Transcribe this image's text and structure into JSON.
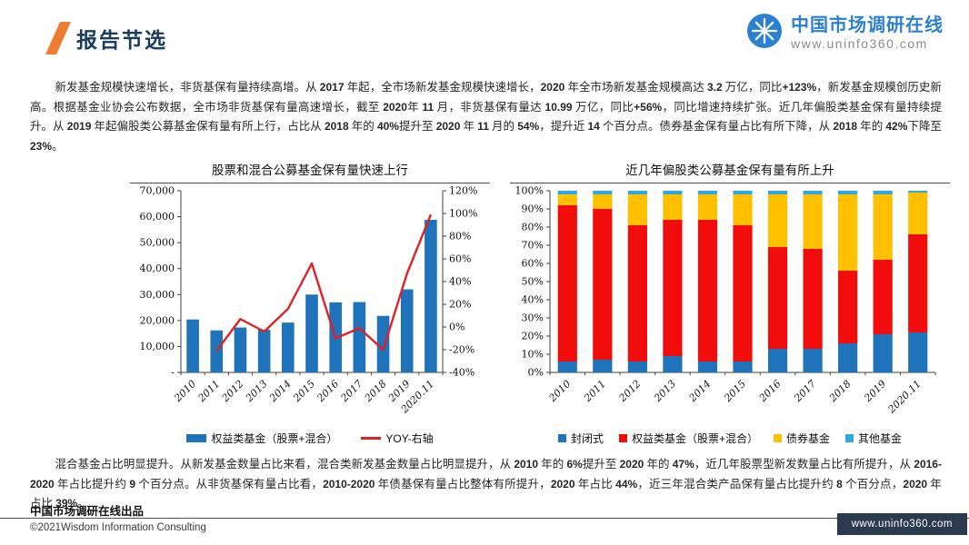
{
  "header": {
    "title": "报告节选"
  },
  "logo": {
    "name": "中国市场调研在线",
    "url": "www.uninfo360.com"
  },
  "paragraphs": {
    "top": [
      {
        "t": "新发基金规模快速增长，非货基保有量持续高增。从 "
      },
      {
        "t": "2017",
        "b": true
      },
      {
        "t": " 年起，全市场新发基金规模快速增长，"
      },
      {
        "t": "2020",
        "b": true
      },
      {
        "t": " 年全市场新发基金规模高达 "
      },
      {
        "t": "3.2",
        "b": true
      },
      {
        "t": " 万亿，同比"
      },
      {
        "t": "+123%",
        "b": true
      },
      {
        "t": "，新发基金规模创历史新高。根据基金业协会公布数据，全市场非货基保有量高速增长，截至 "
      },
      {
        "t": "2020",
        "b": true
      },
      {
        "t": "年 "
      },
      {
        "t": "11",
        "b": true
      },
      {
        "t": " 月，非货基保有量达 "
      },
      {
        "t": "10.99",
        "b": true
      },
      {
        "t": " 万亿，同比"
      },
      {
        "t": "+56%",
        "b": true
      },
      {
        "t": "，同比增速持续扩张。近几年偏股类基金保有量持续提升。从 "
      },
      {
        "t": "2019",
        "b": true
      },
      {
        "t": " 年起偏股类公募基金保有量有所上行，占比从 "
      },
      {
        "t": "2018",
        "b": true
      },
      {
        "t": " 年的 "
      },
      {
        "t": "40%",
        "b": true
      },
      {
        "t": "提升至 "
      },
      {
        "t": "2020",
        "b": true
      },
      {
        "t": " 年 "
      },
      {
        "t": "11",
        "b": true
      },
      {
        "t": " 月的 "
      },
      {
        "t": "54%",
        "b": true
      },
      {
        "t": "，提升近 "
      },
      {
        "t": "14",
        "b": true
      },
      {
        "t": " 个百分点。债券基金保有量占比有所下降，从 "
      },
      {
        "t": "2018",
        "b": true
      },
      {
        "t": " 年的 "
      },
      {
        "t": "42%",
        "b": true
      },
      {
        "t": "下降至 "
      },
      {
        "t": "23%",
        "b": true
      },
      {
        "t": "。"
      }
    ],
    "bottom": [
      {
        "t": "混合基金占比明显提升。从新发基金数量占比来看，混合类新发基金数量占比明显提升，从 "
      },
      {
        "t": "2010",
        "b": true
      },
      {
        "t": " 年的 "
      },
      {
        "t": "6%",
        "b": true
      },
      {
        "t": "提升至 "
      },
      {
        "t": "2020",
        "b": true
      },
      {
        "t": " 年的 "
      },
      {
        "t": "47%",
        "b": true
      },
      {
        "t": "，近几年股票型新发数量占比有所提升，从 "
      },
      {
        "t": "2016-2020",
        "b": true
      },
      {
        "t": " 年占比提升约 "
      },
      {
        "t": "9",
        "b": true
      },
      {
        "t": " 个百分点。从非货基保有量占比看，"
      },
      {
        "t": "2010-2020",
        "b": true
      },
      {
        "t": " 年债基保有量占比整体有所提升，"
      },
      {
        "t": "2020",
        "b": true
      },
      {
        "t": " 年占比 "
      },
      {
        "t": "44%",
        "b": true
      },
      {
        "t": "，近三年混合类产品保有量占比提升约 "
      },
      {
        "t": "8",
        "b": true
      },
      {
        "t": " 个百分点，"
      },
      {
        "t": "2020",
        "b": true
      },
      {
        "t": " 年占比 "
      },
      {
        "t": "39%",
        "b": true
      },
      {
        "t": "。"
      }
    ]
  },
  "chart_data": [
    {
      "type": "bar",
      "variant": "bar+line dual axis",
      "title": "股票和混合公募基金保有量快速上行",
      "categories": [
        "2010",
        "2011",
        "2012",
        "2013",
        "2014",
        "2015",
        "2016",
        "2017",
        "2018",
        "2019",
        "2020.11"
      ],
      "series": [
        {
          "name": "权益类基金（股票+混合）",
          "kind": "bar",
          "marker": "bar",
          "axis": "left",
          "color": "#1E73BA",
          "values": [
            20400,
            16200,
            17300,
            16500,
            19200,
            30000,
            27000,
            27100,
            21800,
            32000,
            58800
          ]
        },
        {
          "name": "YOY-右轴",
          "kind": "line",
          "marker": "line",
          "axis": "right",
          "color": "#DD2127",
          "values": [
            null,
            -21,
            7,
            -4,
            16,
            56,
            -10,
            -1,
            -20,
            47,
            99
          ]
        }
      ],
      "left_axis": {
        "min": 0,
        "max": 70000,
        "step": 10000,
        "zero_label": "-"
      },
      "right_axis": {
        "min": -40,
        "max": 120,
        "step": 20,
        "suffix": "%"
      },
      "grid": false,
      "legend_position": "bottom"
    },
    {
      "type": "bar",
      "variant": "stacked-100%",
      "title": "近几年偏股类公募基金保有量有所上升",
      "categories": [
        "2010",
        "2011",
        "2012",
        "2013",
        "2014",
        "2015",
        "2016",
        "2017",
        "2018",
        "2019",
        "2020.11"
      ],
      "series": [
        {
          "name": "封闭式",
          "marker": "square",
          "color": "#1E73BA",
          "values": [
            6,
            7,
            6,
            9,
            6,
            6,
            13,
            13,
            16,
            21,
            22
          ]
        },
        {
          "name": "权益类基金（股票+混合）",
          "marker": "square",
          "color": "#F20D0D",
          "values": [
            86,
            83,
            75,
            75,
            78,
            75,
            56,
            55,
            40,
            41,
            54
          ]
        },
        {
          "name": "债券基金",
          "marker": "square",
          "color": "#FFC000",
          "values": [
            6,
            8,
            17,
            14,
            14,
            17,
            29,
            30,
            42,
            36,
            23
          ]
        },
        {
          "name": "其他基金",
          "marker": "square",
          "color": "#2FA8DF",
          "values": [
            2,
            2,
            2,
            2,
            2,
            2,
            2,
            2,
            2,
            2,
            1
          ]
        }
      ],
      "y_axis": {
        "min": 0,
        "max": 100,
        "step": 10,
        "suffix": "%"
      },
      "grid": false,
      "legend_position": "bottom"
    }
  ],
  "footer": {
    "producer": "中国市场调研在线出品",
    "copyright": "©2021Wisdom Information Consulting",
    "url": "www.uninfo360.com"
  },
  "colors": {
    "accent_orange": "#EE7C31",
    "brand_blue": "#2C80D2",
    "title_navy": "#1B3C61",
    "footer_navy": "#2B3B4F"
  }
}
